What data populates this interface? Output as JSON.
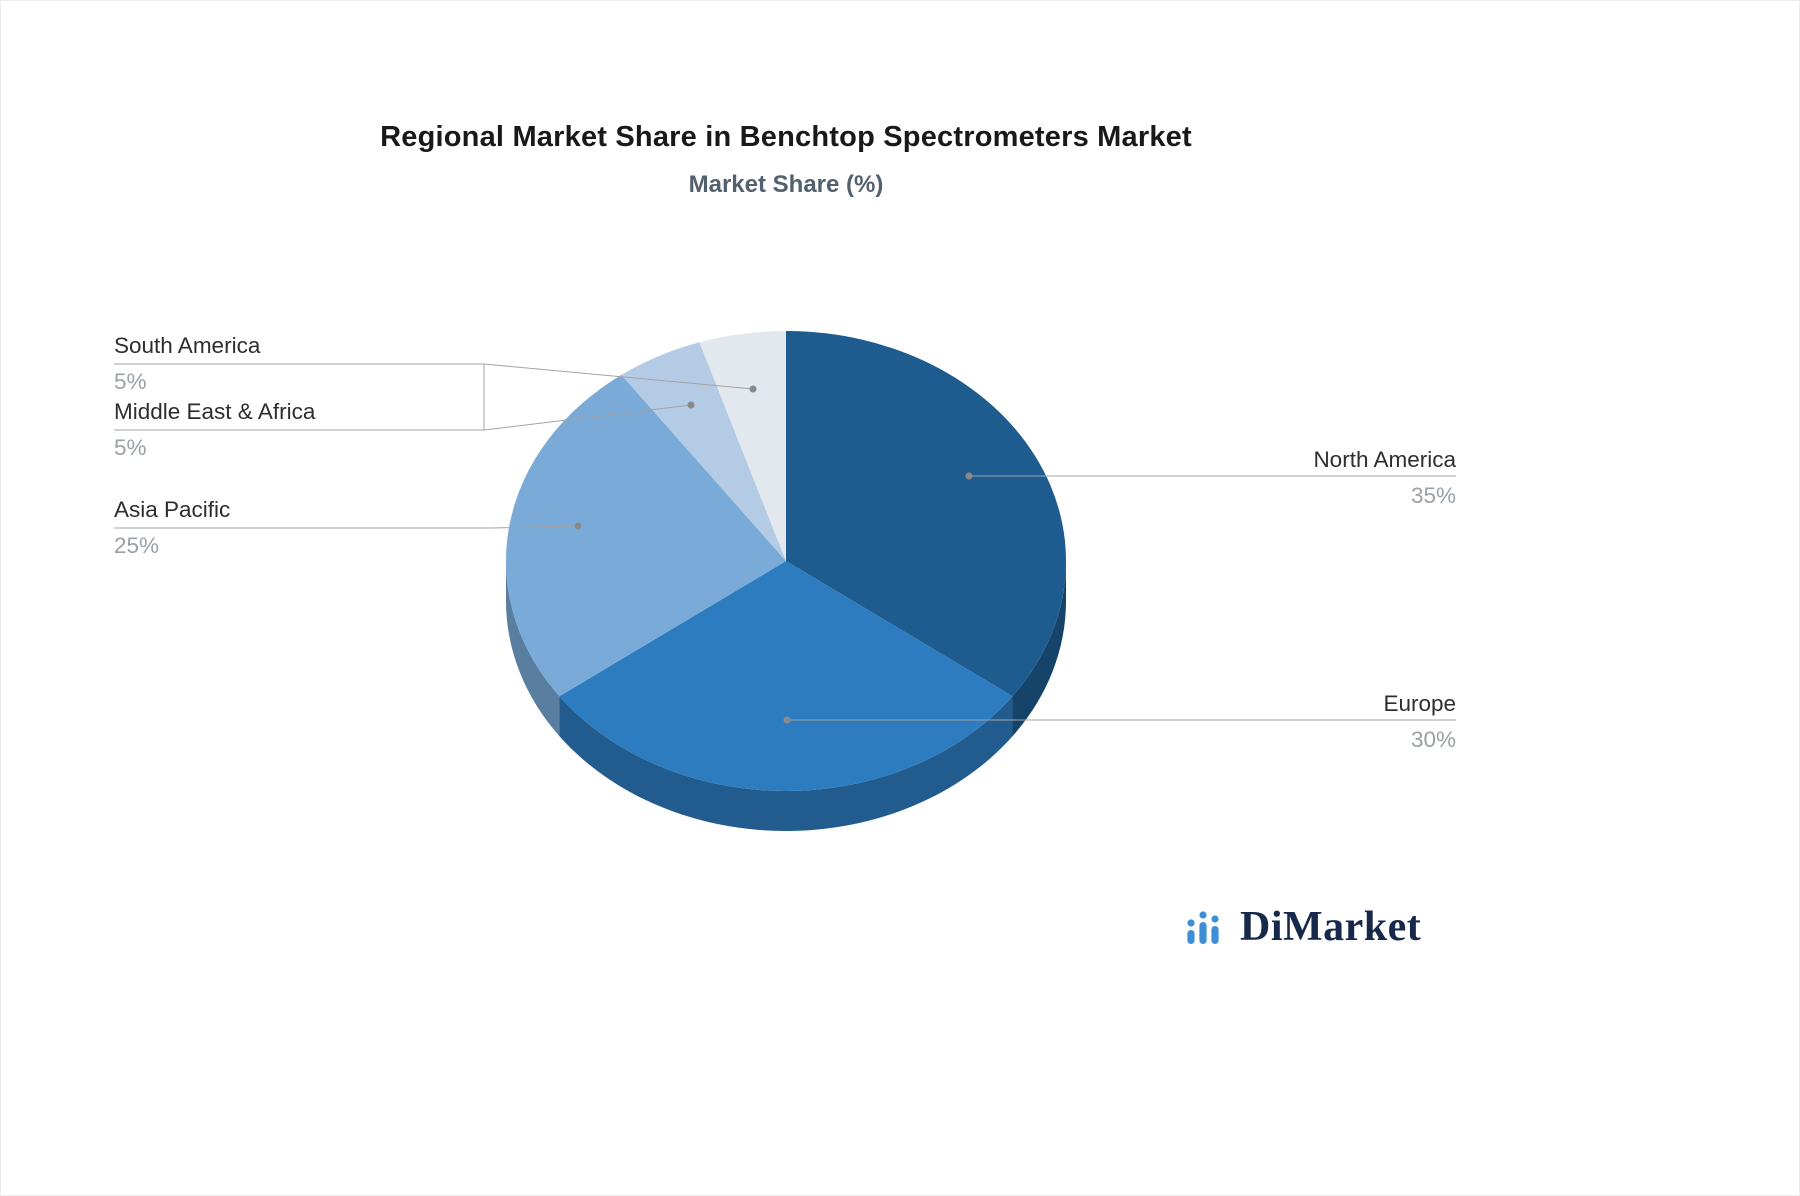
{
  "chart": {
    "title": "Regional Market Share in Benchtop Spectrometers Market",
    "subtitle": "Market Share (%)"
  },
  "chart_data": {
    "type": "pie",
    "title": "Regional Market Share in Benchtop Spectrometers Market",
    "subtitle": "Market Share (%)",
    "unit": "%",
    "start_angle_deg": 0,
    "direction": "clockwise",
    "effect": "3d",
    "legend_position": "none",
    "slices": [
      {
        "label": "North America",
        "value": 35,
        "color": "#1e5b8e"
      },
      {
        "label": "Europe",
        "value": 30,
        "color": "#2e7cc0"
      },
      {
        "label": "Asia Pacific",
        "value": 25,
        "color": "#79aad8"
      },
      {
        "label": "Middle East & Africa",
        "value": 5,
        "color": "#b4cbe5"
      },
      {
        "label": "South America",
        "value": 5,
        "color": "#e3e8ee"
      }
    ]
  },
  "logo": {
    "text": "DiMarket"
  }
}
